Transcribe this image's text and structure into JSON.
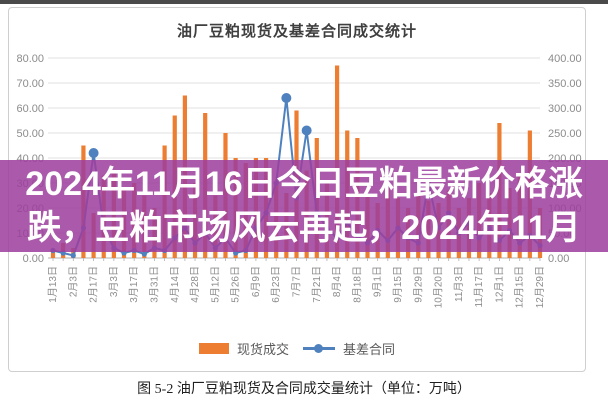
{
  "page": {
    "caption": "图 5-2  油厂豆粕现货及合同成交量统计（单位：万吨）"
  },
  "overlay": {
    "line1": "2024年11月16日今日豆粕最新价格涨",
    "line2": "跌，豆粕市场风云再起，2024年11月",
    "bg_color": "#9d3e9d",
    "text_color": "#ffffff"
  },
  "chart_data": {
    "type": "bar",
    "subtype": "bar+line combo, dual axis",
    "title": "油厂豆粕现货及基差合同成交统计",
    "grid": "horizontal on",
    "legend_position": "bottom",
    "colors": {
      "bar": "#ED7D31",
      "line": "#4E81BD",
      "gridline": "#e2e2e2",
      "axis_text": "#8c8c8c",
      "axis_line": "#b0b0b0"
    },
    "left_axis": {
      "min": 0,
      "max": 80,
      "tick_labels": [
        "80.00",
        "70.00",
        "60.00",
        "50.00",
        "40.00",
        "30.00",
        "20.00",
        "10.00",
        "0.00"
      ]
    },
    "right_axis": {
      "min": 0,
      "max": 400,
      "tick_labels": [
        "400.00",
        "350.00",
        "300.00",
        "250.00",
        "200.00",
        "150.00",
        "100.00",
        "50.00",
        "0.00"
      ]
    },
    "x_labels": [
      "1月13日",
      "2月3日",
      "2月17日",
      "3月3日",
      "3月17日",
      "3月31日",
      "4月14日",
      "4月28日",
      "5月12日",
      "5月26日",
      "6月9日",
      "6月23日",
      "7月7日",
      "7月21日",
      "8月4日",
      "8月18日",
      "9月1日",
      "9月15日",
      "9月29日",
      "10月20日",
      "11月3日",
      "11月17日",
      "12月1日",
      "12月15日",
      "12月29日"
    ],
    "label_every": 2,
    "n_points": 49,
    "series": [
      {
        "name": "现货成交",
        "type": "bar",
        "axis": "left",
        "color": "#ED7D31",
        "values": [
          3,
          6,
          4,
          45,
          18,
          33,
          35,
          28,
          30,
          25,
          20,
          45,
          57,
          65,
          30,
          58,
          25,
          50,
          40,
          38,
          40,
          40,
          30,
          26,
          59,
          35,
          48,
          30,
          77,
          51,
          48,
          25,
          22,
          28,
          24,
          20,
          26,
          23,
          22,
          27,
          20,
          24,
          30,
          26,
          54,
          28,
          33,
          51,
          20
        ]
      },
      {
        "name": "基差合同",
        "type": "line",
        "axis": "right",
        "color": "#4E81BD",
        "values": [
          15,
          10,
          5,
          60,
          210,
          60,
          20,
          10,
          15,
          8,
          20,
          15,
          40,
          60,
          30,
          50,
          20,
          40,
          10,
          15,
          60,
          90,
          150,
          320,
          120,
          255,
          90,
          60,
          40,
          70,
          45,
          30,
          55,
          35,
          60,
          40,
          30,
          150,
          60,
          90,
          50,
          70,
          40,
          60,
          35,
          55,
          30,
          45,
          25
        ]
      }
    ]
  }
}
